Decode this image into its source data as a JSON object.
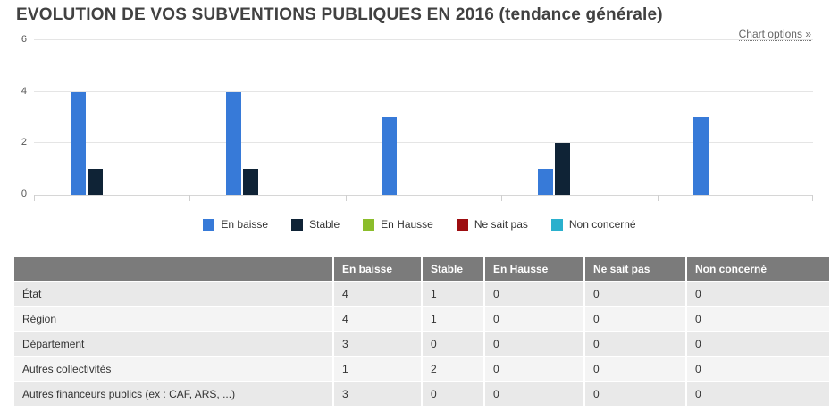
{
  "header": {
    "chart_options_label": "Chart options »"
  },
  "chart_data": {
    "type": "bar",
    "title": "EVOLUTION DE VOS SUBVENTIONS PUBLIQUES EN 2016 (tendance générale)",
    "categories": [
      "État",
      "Région",
      "Département",
      "Autres collectivités",
      "Autres financeurs publics (ex : CAF, ARS, ...)"
    ],
    "series": [
      {
        "name": "En baisse",
        "color": "#377ad8",
        "values": [
          4,
          4,
          3,
          1,
          3
        ]
      },
      {
        "name": "Stable",
        "color": "#0f2336",
        "values": [
          1,
          1,
          0,
          2,
          0
        ]
      },
      {
        "name": "En Hausse",
        "color": "#8bbd2b",
        "values": [
          0,
          0,
          0,
          0,
          0
        ]
      },
      {
        "name": "Ne sait pas",
        "color": "#9d0d10",
        "values": [
          0,
          0,
          0,
          0,
          0
        ]
      },
      {
        "name": "Non concerné",
        "color": "#2ab0cd",
        "values": [
          0,
          0,
          0,
          0,
          0
        ]
      }
    ],
    "ylim": [
      0,
      6
    ],
    "yticks": [
      0,
      2,
      4,
      6
    ],
    "grid": true,
    "legend_position": "bottom",
    "x_tick_labels_visible": false
  },
  "table": {
    "columns": [
      "",
      "En baisse",
      "Stable",
      "En Hausse",
      "Ne sait pas",
      "Non concerné"
    ],
    "rows": [
      {
        "label": "État",
        "values": [
          4,
          1,
          0,
          0,
          0
        ]
      },
      {
        "label": "Région",
        "values": [
          4,
          1,
          0,
          0,
          0
        ]
      },
      {
        "label": "Département",
        "values": [
          3,
          0,
          0,
          0,
          0
        ]
      },
      {
        "label": "Autres collectivités",
        "values": [
          1,
          2,
          0,
          0,
          0
        ]
      },
      {
        "label": "Autres financeurs publics (ex : CAF, ARS, ...)",
        "values": [
          3,
          0,
          0,
          0,
          0
        ]
      }
    ]
  }
}
